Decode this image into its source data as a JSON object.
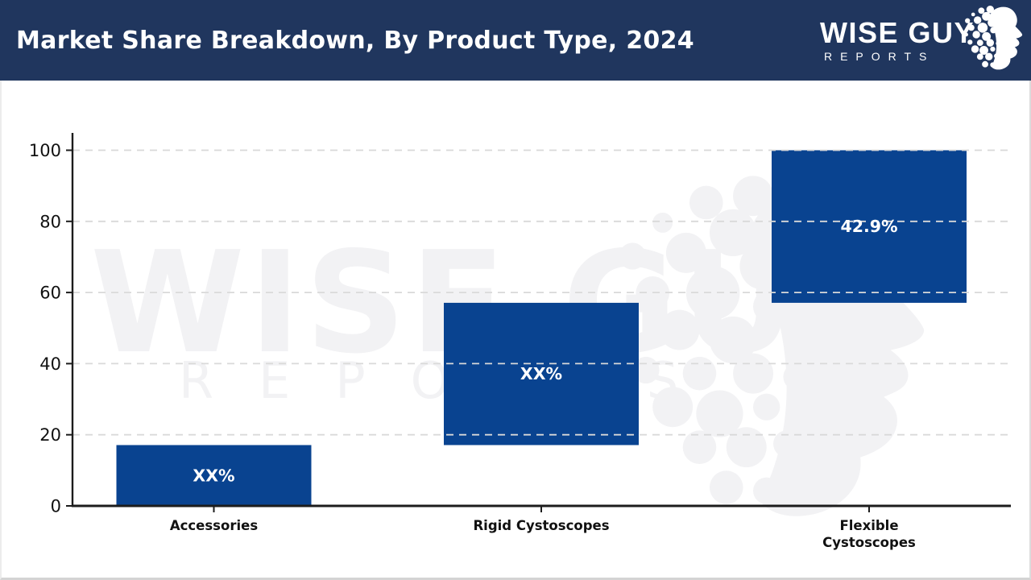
{
  "header": {
    "title": "Market Share Breakdown, By Product Type, 2024",
    "logo": {
      "line1": "WISE GUY",
      "line2": "REPORTS"
    }
  },
  "watermark": {
    "line1": "WISE GUY",
    "line2": "REPORTS"
  },
  "chart_data": {
    "type": "bar",
    "subtype": "waterfall",
    "title": "Market Share Breakdown, By Product Type, 2024",
    "categories": [
      "Accessories",
      "Rigid Cystoscopes",
      "Flexible\nCystoscopes"
    ],
    "bars": [
      {
        "category": "Accessories",
        "start": 0,
        "end": 17.1,
        "label": "XX%"
      },
      {
        "category": "Rigid Cystoscopes",
        "start": 17.1,
        "end": 57.1,
        "label": "XX%"
      },
      {
        "category": "Flexible Cystoscopes",
        "start": 57.1,
        "end": 100,
        "label": "42.9%"
      }
    ],
    "yticks": [
      0,
      20,
      40,
      60,
      80,
      100
    ],
    "ylim": [
      0,
      105
    ],
    "xlabel": "",
    "ylabel": "",
    "grid": true,
    "legend": null,
    "colors": {
      "bar": "#094390",
      "grid": "#d9d9d9",
      "axis": "#1c1c1c",
      "tick_label": "#111111",
      "bar_label": "#ffffff",
      "header_bg": "#20365e",
      "watermark": "#f2f2f4"
    }
  }
}
